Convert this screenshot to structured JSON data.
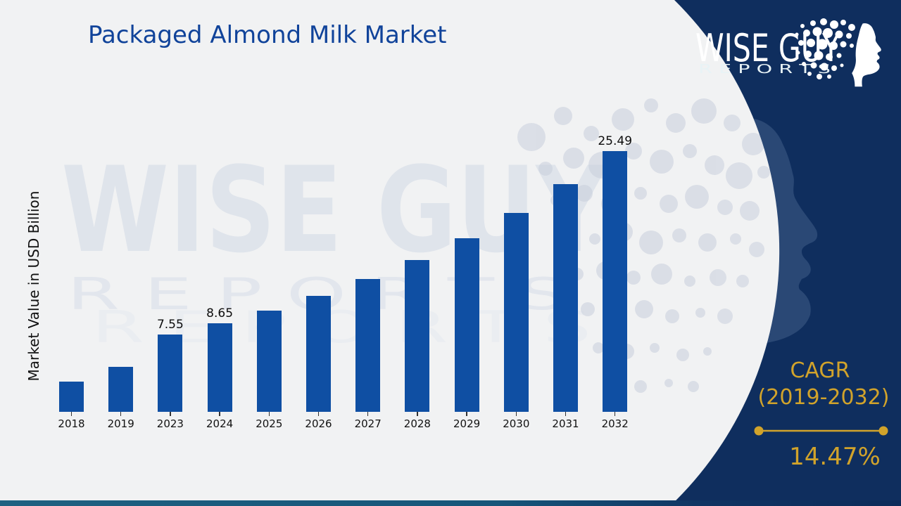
{
  "title": "Packaged Almond Milk Market",
  "ylabel": "Market Value in USD Billion",
  "logo": {
    "line1": "WISE GUY",
    "line2": "R E P O R T S",
    "face_icon": "head-profile-dots-icon"
  },
  "watermark": {
    "line1": "WISE GUY",
    "line2": "R E P O R T S"
  },
  "cagr": {
    "heading": "CAGR",
    "range": "(2019-2032)",
    "value": "14.47%"
  },
  "colors": {
    "bar_blue": "#0f4fa3",
    "navy_panel": "#0f2e5e",
    "gold_accent": "#d1a32b",
    "title_blue": "#10439a",
    "chart_background": "#f1f2f3",
    "footer_teal": "#1f6181"
  },
  "chart_data": {
    "type": "bar",
    "title": "Packaged Almond Milk Market",
    "xlabel": "",
    "ylabel": "Market Value in USD Billion",
    "unit": "USD Billion",
    "grid": false,
    "legend": "none",
    "ylim": [
      0,
      27
    ],
    "categories": [
      "2018",
      "2019",
      "2023",
      "2024",
      "2025",
      "2026",
      "2027",
      "2028",
      "2029",
      "2030",
      "2031",
      "2032"
    ],
    "values": [
      2.95,
      4.4,
      7.55,
      8.65,
      9.9,
      11.33,
      12.97,
      14.85,
      17.0,
      19.46,
      22.28,
      25.49
    ],
    "points": [
      {
        "year": "2018",
        "value": 2.95,
        "label": ""
      },
      {
        "year": "2019",
        "value": 4.4,
        "label": ""
      },
      {
        "year": "2023",
        "value": 7.55,
        "label": "7.55"
      },
      {
        "year": "2024",
        "value": 8.65,
        "label": "8.65"
      },
      {
        "year": "2025",
        "value": 9.9,
        "label": ""
      },
      {
        "year": "2026",
        "value": 11.33,
        "label": ""
      },
      {
        "year": "2027",
        "value": 12.97,
        "label": ""
      },
      {
        "year": "2028",
        "value": 14.85,
        "label": ""
      },
      {
        "year": "2029",
        "value": 17.0,
        "label": ""
      },
      {
        "year": "2030",
        "value": 19.46,
        "label": ""
      },
      {
        "year": "2031",
        "value": 22.28,
        "label": ""
      },
      {
        "year": "2032",
        "value": 25.49,
        "label": "25.49"
      }
    ]
  }
}
